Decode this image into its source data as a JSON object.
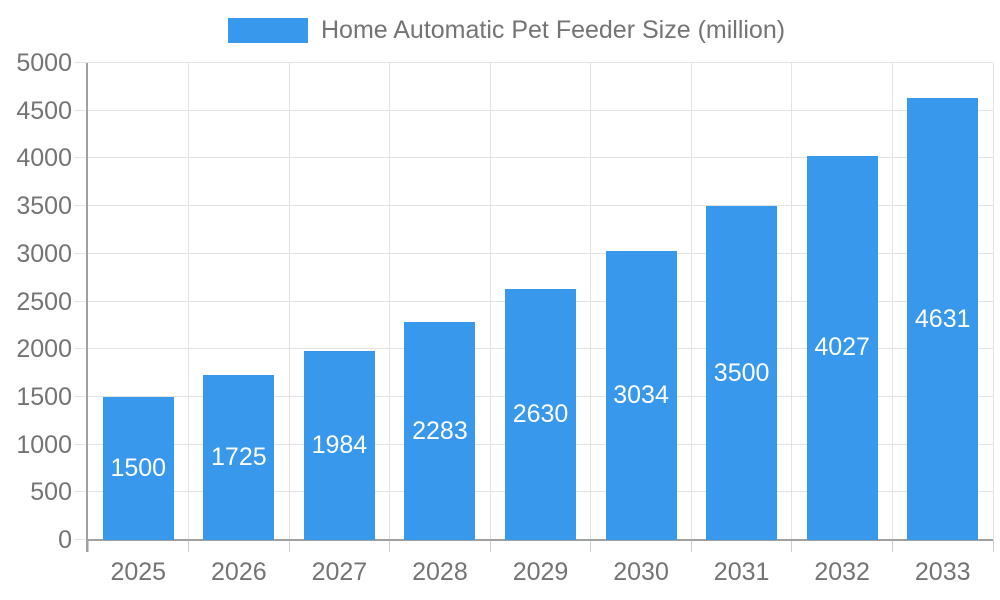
{
  "legend": {
    "label": "Home Automatic Pet Feeder Size (million)",
    "swatch_color": "#3898ec"
  },
  "chart_data": {
    "type": "bar",
    "title": "Home Automatic Pet Feeder Size (million)",
    "series_name": "Home Automatic Pet Feeder Size (million)",
    "categories": [
      "2025",
      "2026",
      "2027",
      "2028",
      "2029",
      "2030",
      "2031",
      "2032",
      "2033"
    ],
    "values": [
      1500,
      1725,
      1984,
      2283,
      2630,
      3034,
      3500,
      4027,
      4631
    ],
    "xlabel": "",
    "ylabel": "",
    "ylim": [
      0,
      5000
    ],
    "ytick_step": 500,
    "yticks": [
      0,
      500,
      1000,
      1500,
      2000,
      2500,
      3000,
      3500,
      4000,
      4500,
      5000
    ],
    "grid": true,
    "legend_position": "top",
    "value_labels": "inside-center"
  },
  "colors": {
    "bar": "#3898ec",
    "grid": "#e3e3e3",
    "axis": "#a0a0a0",
    "tick": "#cccccc",
    "text": "#747474",
    "value_label": "#ffffff",
    "background": "#ffffff"
  }
}
